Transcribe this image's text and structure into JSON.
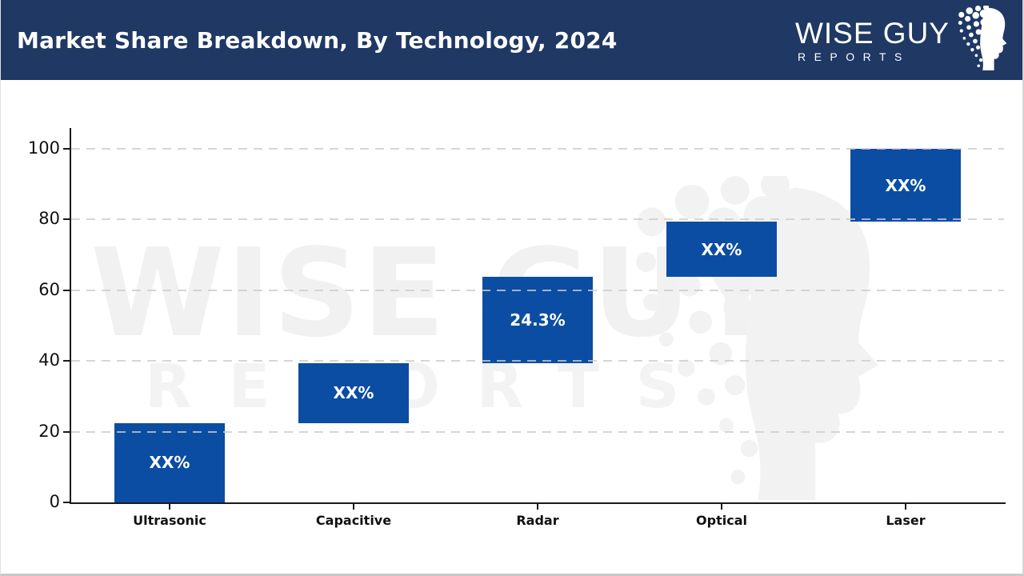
{
  "header": {
    "title": "Market Share Breakdown, By Technology, 2024",
    "brand_line1": "WISE GUY",
    "brand_line2": "REPORTS"
  },
  "watermark": {
    "line1": "WISE GUY",
    "line2": "REPORTS"
  },
  "colors": {
    "header_bg": "#1f3864",
    "bar": "#0b4da2",
    "bar_label": "#ffffff",
    "grid": "#cccccc",
    "axis": "#1a1a1a",
    "watermark": "#f2f2f2"
  },
  "chart_data": {
    "type": "bar",
    "subtype": "waterfall",
    "title": "Market Share Breakdown, By Technology, 2024",
    "categories": [
      "Ultrasonic",
      "Capacitive",
      "Radar",
      "Optical",
      "Laser"
    ],
    "segments": [
      {
        "start": 0,
        "end": 22.4
      },
      {
        "start": 22.4,
        "end": 39.4
      },
      {
        "start": 39.4,
        "end": 63.7
      },
      {
        "start": 63.7,
        "end": 79.4
      },
      {
        "start": 79.4,
        "end": 100
      }
    ],
    "bar_labels": [
      "XX%",
      "XX%",
      "24.3%",
      "XX%",
      "XX%"
    ],
    "yticks": [
      0,
      20,
      40,
      60,
      80,
      100
    ],
    "ylim": [
      0,
      105
    ],
    "xlabel": "",
    "ylabel": "",
    "grid": "horizontal-dashed",
    "legend": "none"
  }
}
